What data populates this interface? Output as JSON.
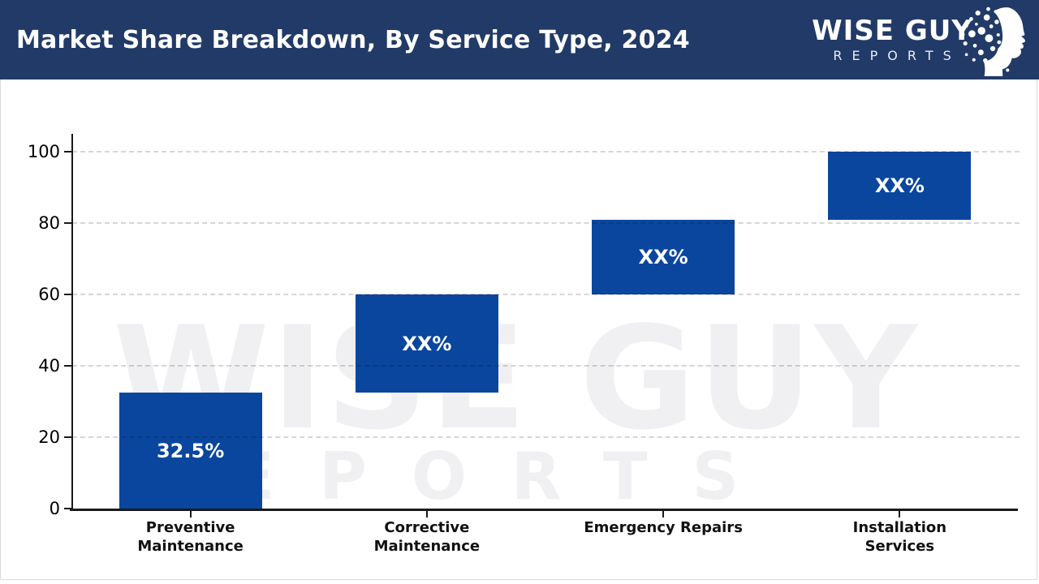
{
  "header": {
    "title": "Market Share Breakdown, By Service Type, 2024",
    "logo_line1": "WISE GUY",
    "logo_line2": "REPORTS"
  },
  "watermark": {
    "line1": "WISE GUY",
    "line2": "REPORTS"
  },
  "chart_data": {
    "type": "bar",
    "variant": "waterfall",
    "title": "Market Share Breakdown, By Service Type, 2024",
    "categories": [
      "Preventive\nMaintenance",
      "Corrective\nMaintenance",
      "Emergency Repairs",
      "Installation\nServices"
    ],
    "segments": [
      {
        "base": 0,
        "top": 32.5,
        "label": "32.5%"
      },
      {
        "base": 32.5,
        "top": 60,
        "label": "XX%"
      },
      {
        "base": 60,
        "top": 81,
        "label": "XX%"
      },
      {
        "base": 81,
        "top": 100,
        "label": "XX%"
      }
    ],
    "xlabel": "",
    "ylabel": "",
    "ylim": [
      0,
      100
    ],
    "yticks": [
      0,
      20,
      40,
      60,
      80,
      100
    ],
    "grid": "horizontal-dashed",
    "legend": "none",
    "colors": {
      "bar": "#0A469E",
      "header_bg": "#223A67",
      "axis": "#1a1a1a",
      "grid_dash": "rgba(0,0,0,0.16)",
      "watermark": "#f0f0f2"
    }
  }
}
